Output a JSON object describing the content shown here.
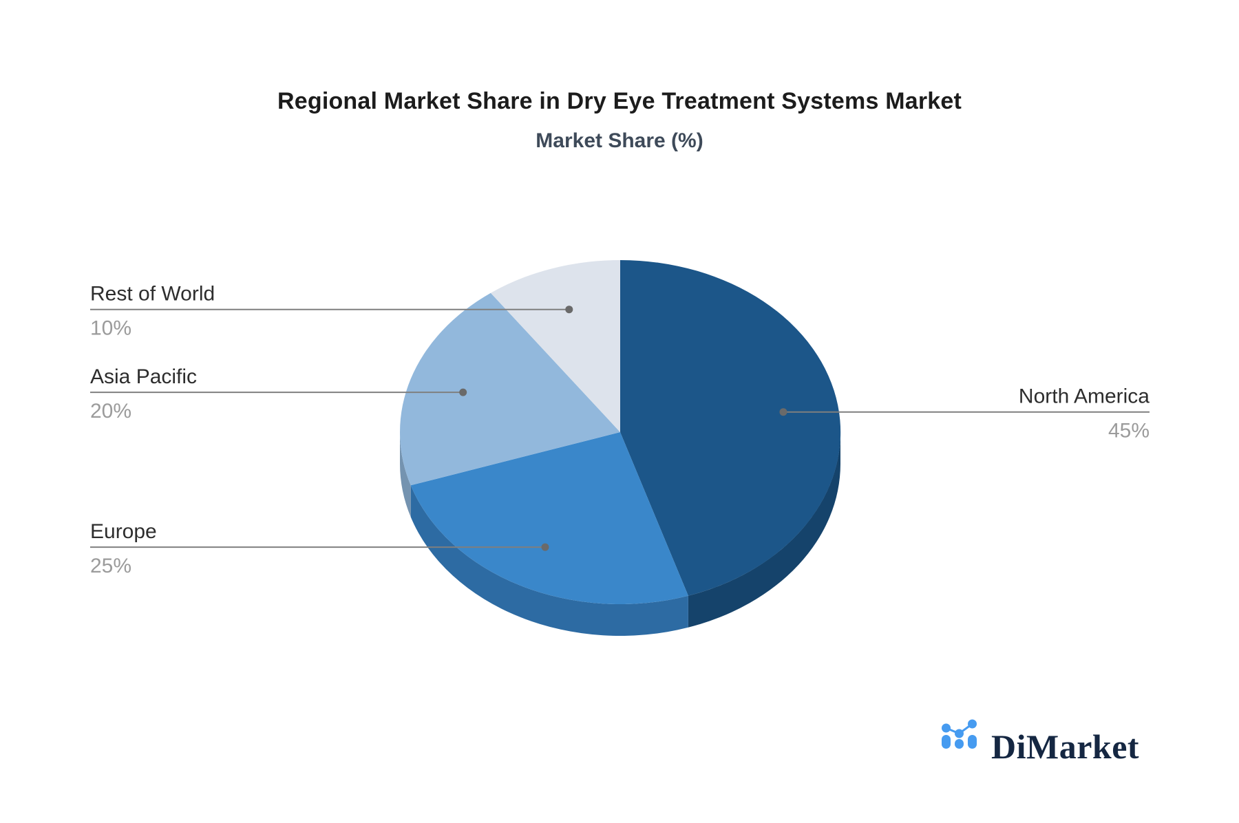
{
  "title": "Regional Market Share in Dry Eye Treatment Systems Market",
  "subtitle": "Market Share (%)",
  "chart_data": {
    "type": "pie",
    "style": "3d",
    "title": "Regional Market Share in Dry Eye Treatment Systems Market",
    "subtitle": "Market Share (%)",
    "unit": "%",
    "start_angle_deg": 0,
    "direction": "clockwise",
    "legend_position": "callout-labels",
    "categories": [
      "North America",
      "Europe",
      "Asia Pacific",
      "Rest of World"
    ],
    "values": [
      45,
      25,
      20,
      10
    ],
    "value_labels": [
      "45%",
      "25%",
      "20%",
      "10%"
    ],
    "colors": [
      "#1c5689",
      "#3a87ca",
      "#92b8dc",
      "#dde3ec"
    ],
    "side_colors": [
      "#15436b",
      "#2d6ba3",
      "#7493b0",
      "#b1b6bd"
    ]
  },
  "logo": {
    "text": "DiMarket",
    "icon": "bar-chart-trend-icon",
    "accent_color": "#469bf0",
    "text_color": "#152742"
  }
}
